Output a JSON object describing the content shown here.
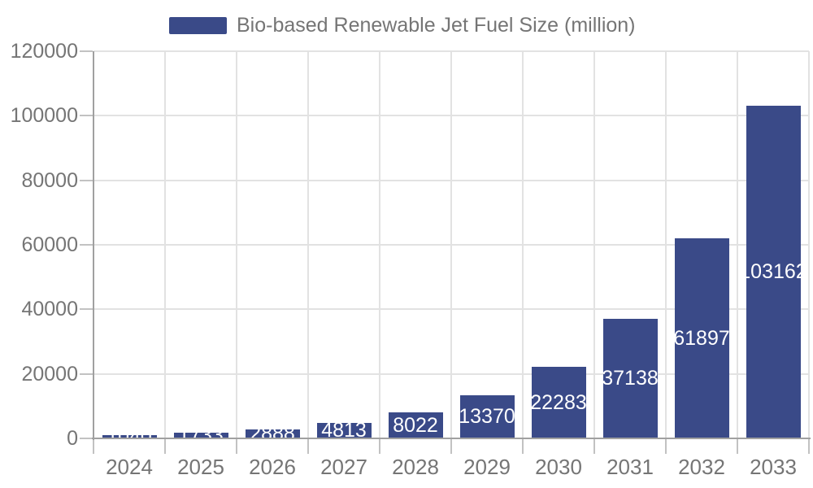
{
  "legend": {
    "label": "Bio-based Renewable Jet Fuel Size (million)"
  },
  "chart_data": {
    "type": "bar",
    "title": "Bio-based Renewable Jet Fuel Size (million)",
    "categories": [
      "2024",
      "2025",
      "2026",
      "2027",
      "2028",
      "2029",
      "2030",
      "2031",
      "2032",
      "2033"
    ],
    "values": [
      1040,
      1733,
      2888,
      4813,
      8022,
      13370,
      22283,
      37138,
      61897,
      103162
    ],
    "series": [
      {
        "name": "Bio-based Renewable Jet Fuel Size (million)",
        "values": [
          1040,
          1733,
          2888,
          4813,
          8022,
          13370,
          22283,
          37138,
          61897,
          103162
        ]
      }
    ],
    "xlabel": "",
    "ylabel": "",
    "ylim": [
      0,
      120000
    ],
    "yticks": [
      0,
      20000,
      40000,
      60000,
      80000,
      100000,
      120000
    ],
    "ytick_labels": [
      "0",
      "20000",
      "40000",
      "60000",
      "80000",
      "100000",
      "120000"
    ],
    "grid": true,
    "legend_position": "top",
    "value_labels": "inside-center-white",
    "colors": {
      "bar": "#3A4A88",
      "bar_label": "#ffffff",
      "axis_text": "#757575",
      "title_text": "#757575",
      "grid_line": "#e2e2e2",
      "axis_line": "#a0a0a0",
      "tick_line": "#c2c2c2",
      "background": "#ffffff"
    }
  }
}
